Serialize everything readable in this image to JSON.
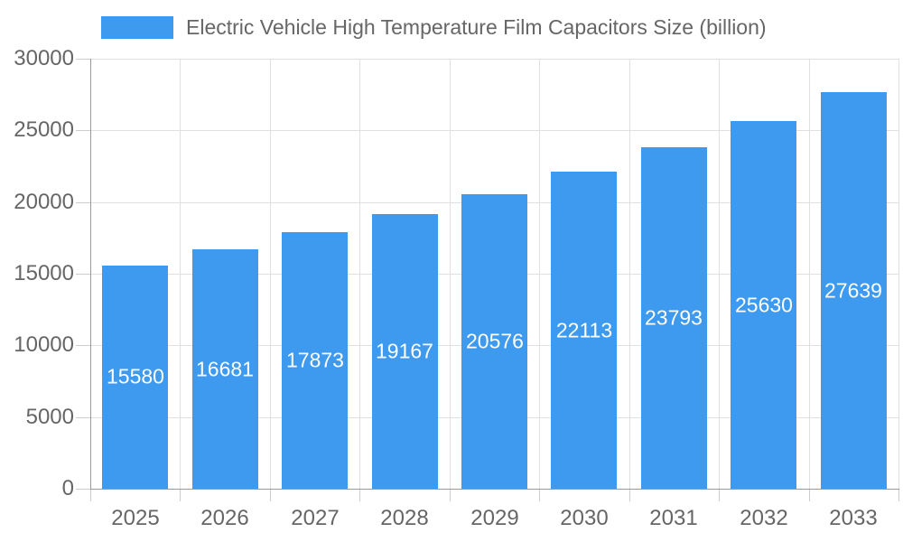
{
  "legend": {
    "label": "Electric Vehicle High Temperature Film Capacitors Size (billion)"
  },
  "chart_data": {
    "type": "bar",
    "title": "Electric Vehicle High Temperature Film Capacitors Size (billion)",
    "categories": [
      "2025",
      "2026",
      "2027",
      "2028",
      "2029",
      "2030",
      "2031",
      "2032",
      "2033"
    ],
    "values": [
      15580,
      16681,
      17873,
      19167,
      20576,
      22113,
      23793,
      25630,
      27639
    ],
    "xlabel": "",
    "ylabel": "",
    "ylim": [
      0,
      30000
    ],
    "yticks": [
      0,
      5000,
      10000,
      15000,
      20000,
      25000,
      30000
    ],
    "grid": true,
    "legend_position": "top-left",
    "value_label_position": "inside-center",
    "colors": {
      "bar": "#3d9aee",
      "value_label": "#ffffff",
      "grid": "#e0e0e0",
      "axis": "#999999",
      "tick": "#cccccc",
      "text": "#666666",
      "background": "#ffffff"
    }
  }
}
